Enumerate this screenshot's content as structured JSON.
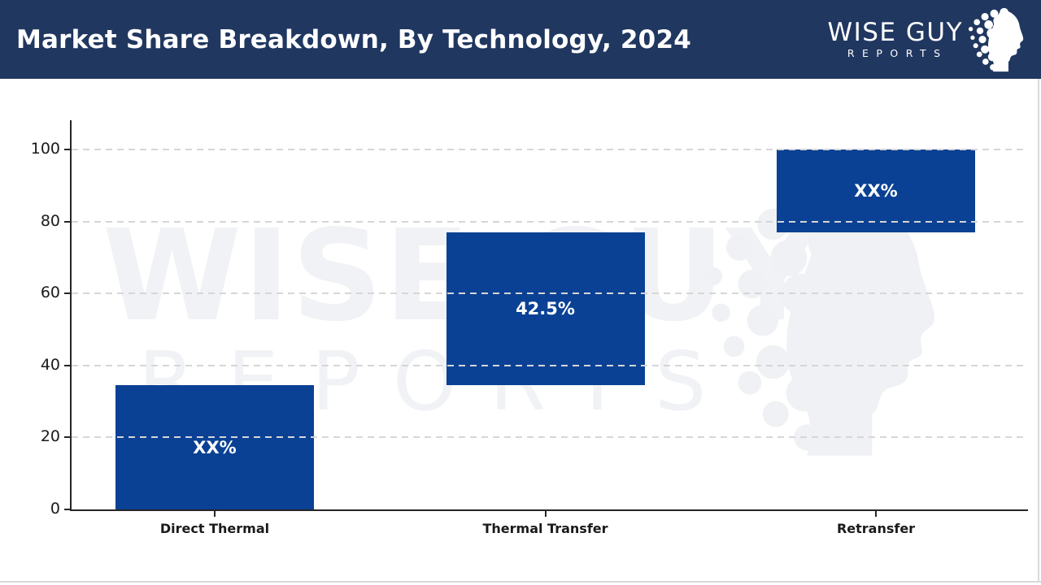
{
  "header": {
    "title": "Market Share Breakdown, By Technology, 2024",
    "brand": {
      "line1": "WISE GUY",
      "line2": "REPORTS"
    }
  },
  "watermark": {
    "line1": "WISE GUY",
    "line2": "REPORTS"
  },
  "chart_data": {
    "type": "bar",
    "subtype": "floating-waterfall",
    "title": "Market Share Breakdown, By Technology, 2024",
    "categories": [
      "Direct Thermal",
      "Thermal Transfer",
      "Retransfer"
    ],
    "segments": [
      {
        "category": "Direct Thermal",
        "start": 0,
        "end": 34.5,
        "value": 34.5,
        "label": "XX%"
      },
      {
        "category": "Thermal Transfer",
        "start": 34.5,
        "end": 77,
        "value": 42.5,
        "label": "42.5%"
      },
      {
        "category": "Retransfer",
        "start": 77,
        "end": 100,
        "value": 23,
        "label": "XX%"
      }
    ],
    "y_ticks": [
      0,
      20,
      40,
      60,
      80,
      100
    ],
    "ylim": [
      0,
      108
    ],
    "xlabel": "",
    "ylabel": "",
    "legend": "none",
    "grid": {
      "horizontal": true,
      "style": "dashed",
      "above_bars": true
    },
    "colors": {
      "bar": "#0a4194",
      "header_bg": "#203760",
      "grid": "#d6d6d6",
      "axis": "#262626",
      "tick_label": "#1a1a1a",
      "bar_label": "#ffffff",
      "watermark": "#f1f2f5"
    }
  }
}
